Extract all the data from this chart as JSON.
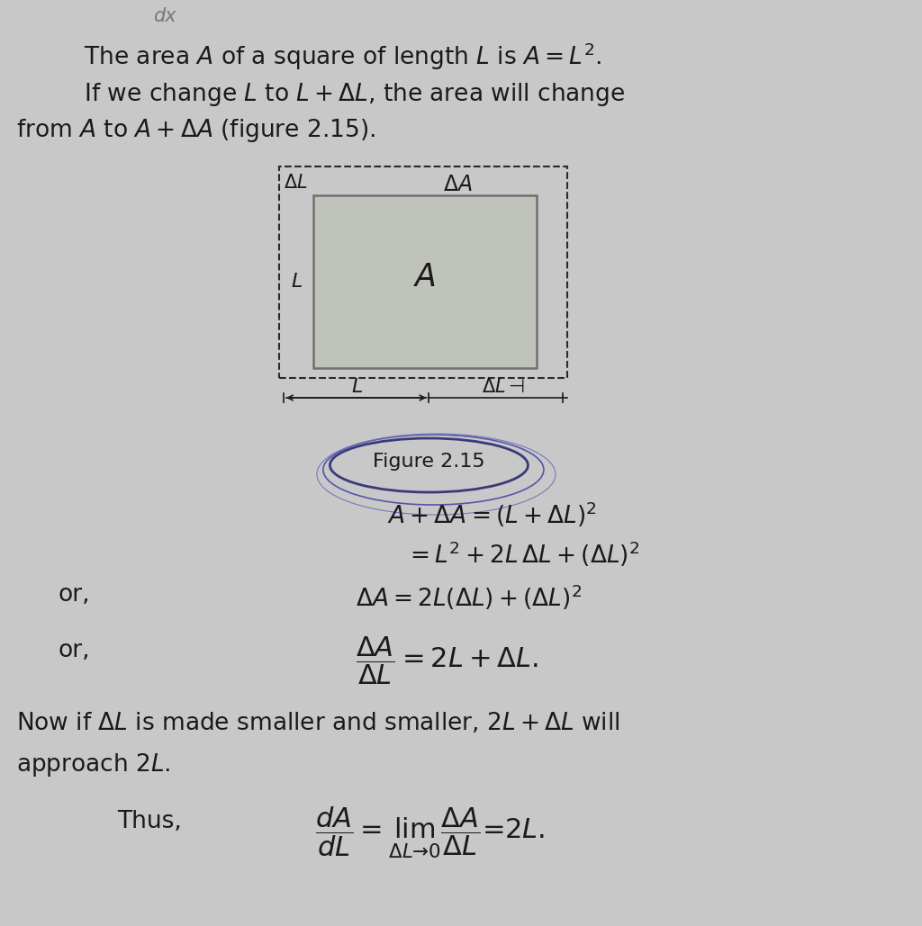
{
  "page_bg": "#c8c8c8",
  "text_color": "#1a1a1a",
  "dx_text": "dx",
  "line1": "    The area $A$ of a square of length $L$ is $A = L^2$.",
  "line2": "    If we change $L$ to $L + \\Delta L$, the area will change",
  "line3": "from $A$ to $A + \\Delta A$ (figure 2.15).",
  "eq1": "$A + \\Delta A = (L + \\Delta L)^2$",
  "eq2": "$= L^2 + 2L\\, \\Delta L + (\\Delta L)^2$",
  "eq3_label": "or,",
  "eq3": "$\\Delta A = 2L(\\Delta L) + (\\Delta L)^2$",
  "eq4_label": "or,",
  "eq4": "$\\dfrac{\\Delta A}{\\Delta L} = 2L + \\Delta L.$",
  "para1": "Now if $\\Delta L$ is made smaller and smaller, $2L + \\Delta L$ will",
  "para2": "approach $2L$.",
  "thus_label": "Thus,",
  "thus_eq": "$\\dfrac{dA}{dL} = \\lim_{\\Delta L \\to 0} \\dfrac{\\Delta A}{\\Delta L} = 2L.$",
  "fig_label": "Figure 2.15",
  "deltaL_label": "$\\Delta L$",
  "deltaA_label": "$\\Delta A$",
  "L_label": "$L$",
  "A_label": "$A$",
  "L_dim": "$\\longleftarrow L \\longrightarrow$",
  "deltaL_dim": "$\\Delta L \\dashv$",
  "body_fs": 19,
  "eq_fs": 19,
  "fig_fs": 16
}
